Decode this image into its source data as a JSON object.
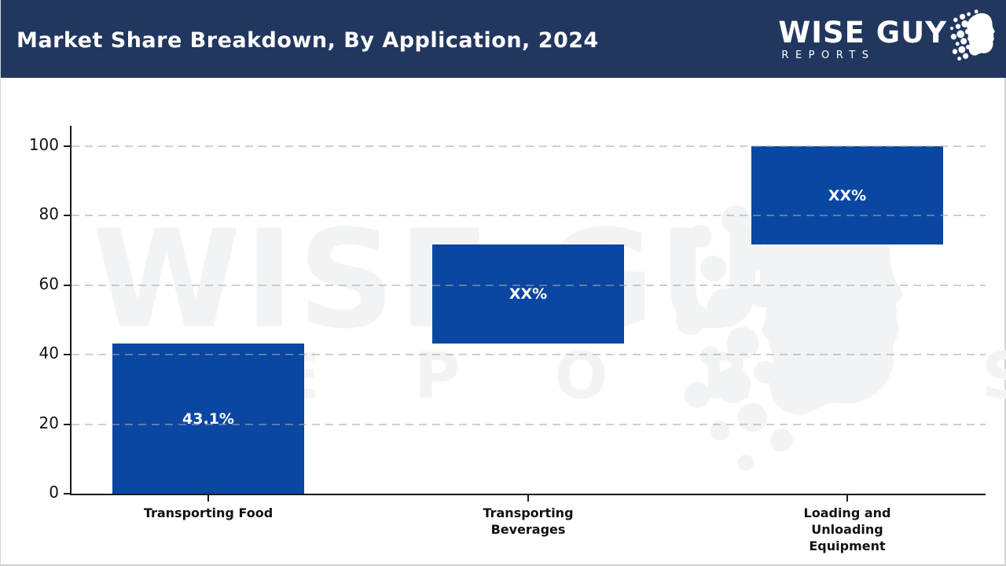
{
  "header": {
    "title": "Market Share Breakdown, By Application, 2024",
    "logo": {
      "line1": "WISE GUY",
      "line2": "REPORTS"
    }
  },
  "watermark": {
    "line1": "WISE GUY",
    "line2": "REPORTS"
  },
  "chart_data": {
    "type": "bar",
    "subtype": "waterfall",
    "title": "Market Share Breakdown, By Application, 2024",
    "categories": [
      {
        "label": "Transporting Food",
        "lines": [
          "Transporting Food"
        ]
      },
      {
        "label": "Transporting Beverages",
        "lines": [
          "Transporting",
          "Beverages"
        ]
      },
      {
        "label": "Loading and Unloading Equipment",
        "lines": [
          "Loading and",
          "Unloading",
          "Equipment"
        ]
      }
    ],
    "segments": [
      {
        "category": "Transporting Food",
        "start": 0,
        "end": 43.1,
        "label": "43.1%"
      },
      {
        "category": "Transporting Beverages",
        "start": 43.1,
        "end": 71.7,
        "label": "XX%"
      },
      {
        "category": "Loading and Unloading Equipment",
        "start": 71.7,
        "end": 100,
        "label": "XX%"
      }
    ],
    "ylim": [
      0,
      105.9
    ],
    "yticks": [
      0,
      20,
      40,
      60,
      80,
      100
    ],
    "xlabel": "",
    "ylabel": "",
    "grid": "horizontal-dashed",
    "legend": false
  },
  "colors": {
    "header_bg": "#22375f",
    "bar": "#0947a2",
    "axis": "#1a1a1a",
    "grid": "#d3d3d3",
    "watermark": "#f2f3f5",
    "bar_label_text": "#ffffff",
    "title_text": "#ffffff"
  }
}
